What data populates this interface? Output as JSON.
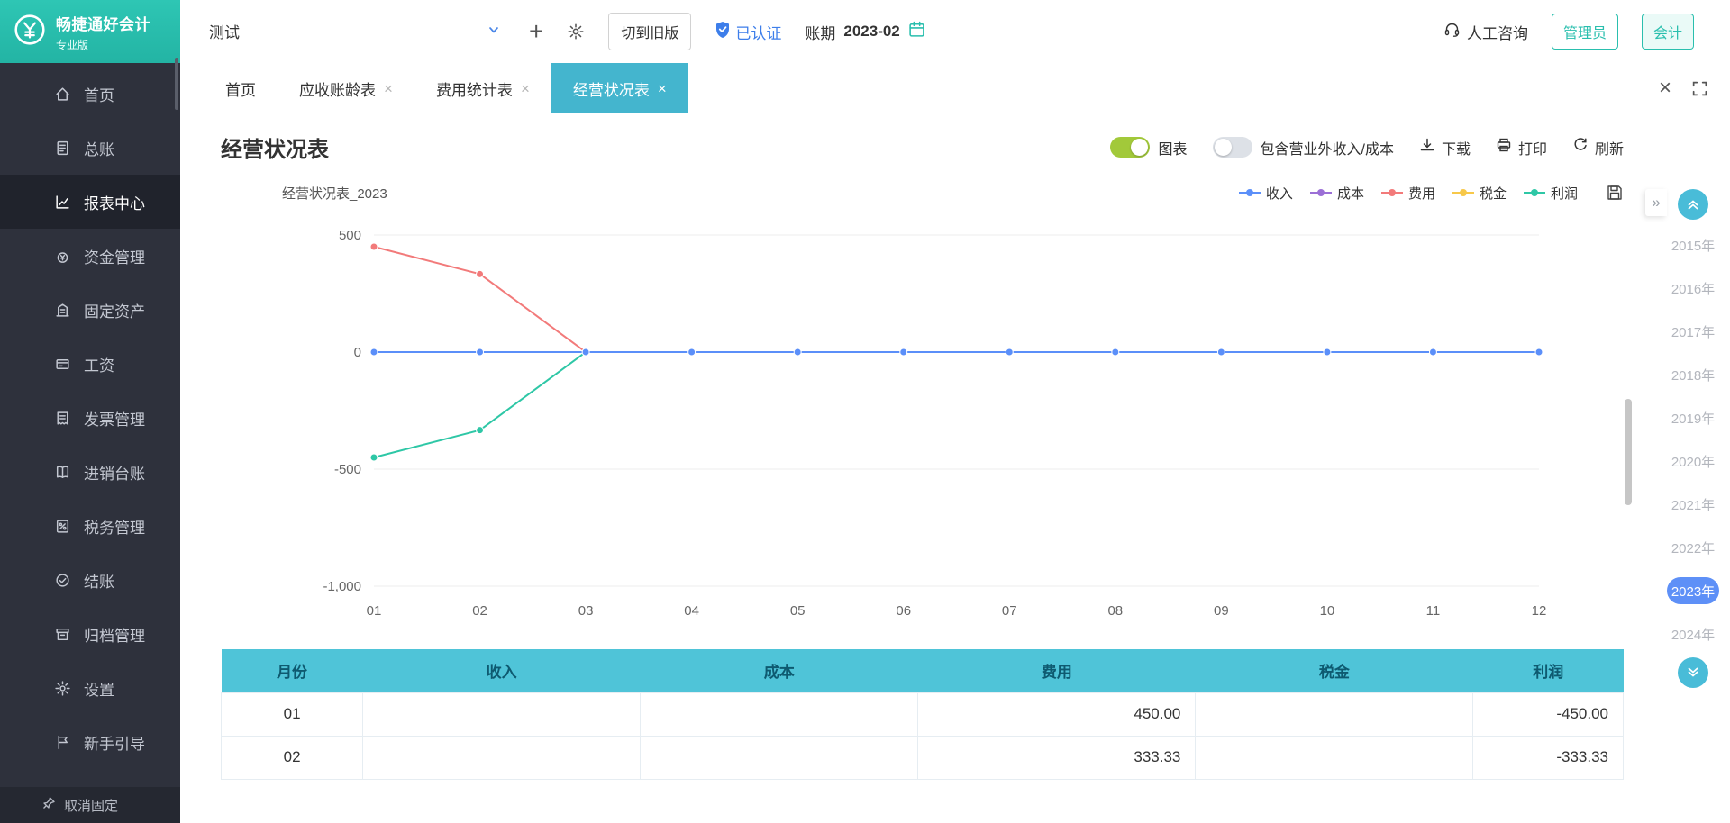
{
  "app": {
    "logo_title": "畅捷通好会计",
    "logo_badge": "专业版"
  },
  "colors": {
    "brand_teal": "#2abfae",
    "tab_active": "#44b5ce",
    "table_header": "#4fc4d8",
    "toggle_on": "#a2c93a",
    "year_active": "#5e90f7",
    "certified_blue": "#3d7eea",
    "sidebar_bg": "#2e313c"
  },
  "sidebar": {
    "items": [
      {
        "label": "首页",
        "icon": "home-icon",
        "active": false
      },
      {
        "label": "总账",
        "icon": "general-ledger-icon",
        "active": false
      },
      {
        "label": "报表中心",
        "icon": "report-center-icon",
        "active": true
      },
      {
        "label": "资金管理",
        "icon": "funds-icon",
        "active": false
      },
      {
        "label": "固定资产",
        "icon": "fixed-assets-icon",
        "active": false
      },
      {
        "label": "工资",
        "icon": "payroll-icon",
        "active": false
      },
      {
        "label": "发票管理",
        "icon": "invoice-icon",
        "active": false
      },
      {
        "label": "进销台账",
        "icon": "inventory-ledger-icon",
        "active": false
      },
      {
        "label": "税务管理",
        "icon": "tax-icon",
        "active": false
      },
      {
        "label": "结账",
        "icon": "checkout-icon",
        "active": false
      },
      {
        "label": "归档管理",
        "icon": "archive-icon",
        "active": false
      },
      {
        "label": "设置",
        "icon": "settings-icon",
        "active": false
      },
      {
        "label": "新手引导",
        "icon": "guide-icon",
        "active": false
      },
      {
        "label": "",
        "icon": "clipped-item-icon",
        "active": false
      }
    ],
    "unpin": "取消固定"
  },
  "topbar": {
    "company": "测试",
    "switch_old": "切到旧版",
    "certified": "已认证",
    "period_label": "账期",
    "period_value": "2023-02",
    "support": "人工咨询",
    "role_admin": "管理员",
    "role_accountant": "会计"
  },
  "tabs": {
    "items": [
      {
        "label": "首页",
        "closable": false,
        "active": false
      },
      {
        "label": "应收账龄表",
        "closable": true,
        "active": false
      },
      {
        "label": "费用统计表",
        "closable": true,
        "active": false
      },
      {
        "label": "经营状况表",
        "closable": true,
        "active": true
      }
    ]
  },
  "report": {
    "title": "经营状况表",
    "toggle_chart": "图表",
    "toggle_chart_on": true,
    "toggle_include": "包含营业外收入/成本",
    "toggle_include_on": false,
    "download": "下载",
    "print": "打印",
    "refresh": "刷新"
  },
  "chart_data": {
    "type": "line",
    "title": "经营状况表_2023",
    "xlabel": "",
    "ylabel": "",
    "grid": true,
    "legend_position": "top-right",
    "x": [
      "01",
      "02",
      "03",
      "04",
      "05",
      "06",
      "07",
      "08",
      "09",
      "10",
      "11",
      "12"
    ],
    "ylim": [
      -1000,
      500
    ],
    "yticks": [
      500,
      0,
      -500,
      -1000
    ],
    "ytick_labels": [
      "500",
      "0",
      "-500",
      "-1,000"
    ],
    "series": [
      {
        "name": "收入",
        "color": "#5b8ff9",
        "values": [
          0,
          0,
          0,
          0,
          0,
          0,
          0,
          0,
          0,
          0,
          0,
          0
        ]
      },
      {
        "name": "成本",
        "color": "#9b6fd6",
        "values": [
          0,
          0,
          0,
          0,
          0,
          0,
          0,
          0,
          0,
          0,
          0,
          0
        ]
      },
      {
        "name": "费用",
        "color": "#f27a7a",
        "values": [
          450,
          333.33,
          0,
          0,
          0,
          0,
          0,
          0,
          0,
          0,
          0,
          0
        ]
      },
      {
        "name": "税金",
        "color": "#f7c849",
        "values": [
          0,
          0,
          0,
          0,
          0,
          0,
          0,
          0,
          0,
          0,
          0,
          0
        ]
      },
      {
        "name": "利润",
        "color": "#2ec7a6",
        "values": [
          -450,
          -333.33,
          0,
          0,
          0,
          0,
          0,
          0,
          0,
          0,
          0,
          0
        ]
      }
    ]
  },
  "table": {
    "headers": [
      "月份",
      "收入",
      "成本",
      "费用",
      "税金",
      "利润"
    ],
    "rows": [
      [
        "01",
        "",
        "",
        "450.00",
        "",
        "-450.00"
      ],
      [
        "02",
        "",
        "",
        "333.33",
        "",
        "-333.33"
      ]
    ]
  },
  "year_panel": {
    "years": [
      "2015年",
      "2016年",
      "2017年",
      "2018年",
      "2019年",
      "2020年",
      "2021年",
      "2022年",
      "2023年",
      "2024年"
    ],
    "active": "2023年"
  }
}
